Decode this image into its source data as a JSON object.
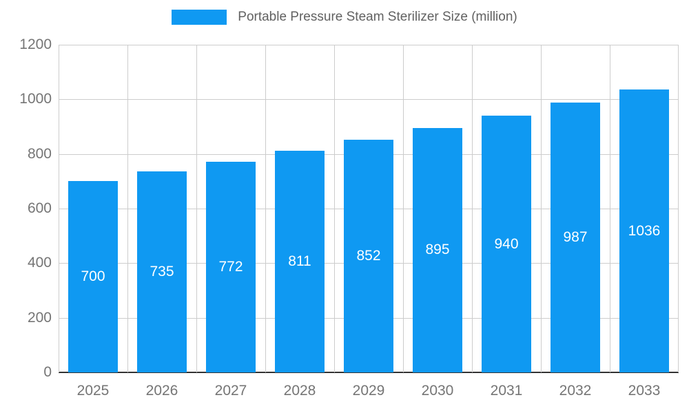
{
  "chart_data": {
    "type": "bar",
    "title": "Portable Pressure Steam Sterilizer Size (million)",
    "categories": [
      "2025",
      "2026",
      "2027",
      "2028",
      "2029",
      "2030",
      "2031",
      "2032",
      "2033"
    ],
    "values": [
      700,
      735,
      772,
      811,
      852,
      895,
      940,
      987,
      1036
    ],
    "xlabel": "",
    "ylabel": "",
    "ylim": [
      0,
      1200
    ],
    "yticks": [
      0,
      200,
      400,
      600,
      800,
      1000,
      1200
    ],
    "grid": true,
    "legend_position": "top",
    "colors": {
      "bar": "#0f99f2",
      "bar_value_label": "#ffffff",
      "axis_text": "#757575",
      "legend_text": "#616161",
      "gridline": "#cccccc",
      "baseline": "#333333",
      "background": "#ffffff"
    }
  }
}
